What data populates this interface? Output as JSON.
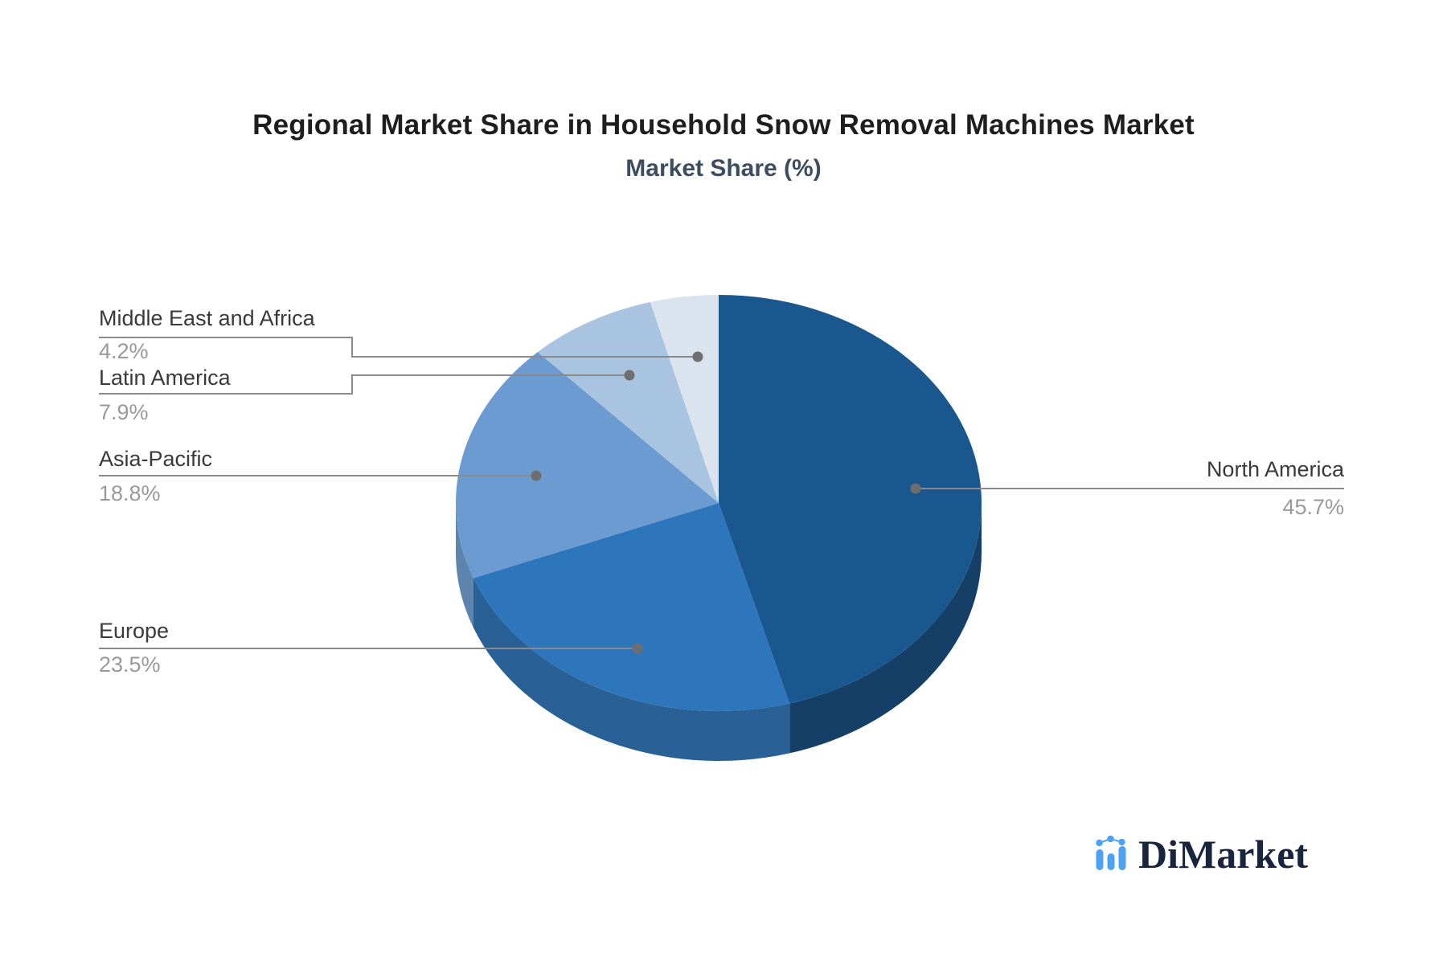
{
  "title": "Regional Market Share in Household Snow Removal Machines Market",
  "subtitle": "Market Share (%)",
  "chart_data": {
    "type": "pie",
    "style": "3d-pie",
    "title": "Regional Market Share in Household Snow Removal Machines Market",
    "value_unit": "%",
    "start_angle": "12-oclock",
    "direction": "clockwise",
    "legend_position": "callout-labels",
    "segments": [
      {
        "label": "North America",
        "value": 45.7,
        "value_label": "45.7%",
        "color": "#1B578F",
        "side_color": "#163F68"
      },
      {
        "label": "Europe",
        "value": 23.5,
        "value_label": "23.5%",
        "color": "#2E76BB",
        "side_color": "#296197"
      },
      {
        "label": "Asia-Pacific",
        "value": 18.8,
        "value_label": "18.8%",
        "color": "#6C9BD1",
        "side_color": "#5C84AC"
      },
      {
        "label": "Latin America",
        "value": 7.9,
        "value_label": "7.9%",
        "color": "#A9C4E1",
        "side_color": "#8FAECB"
      },
      {
        "label": "Middle East and Africa",
        "value": 4.2,
        "value_label": "4.2%",
        "color": "#DBE3EF",
        "side_color": "#C2D2E2"
      }
    ]
  },
  "logo": {
    "text": "DiMarket"
  },
  "colors": {
    "background": "#FFFFFF",
    "title_text": "#1E1E1E",
    "subtitle_text": "#3E4C60",
    "segment_label_text": "#3A3A3A",
    "segment_value_text": "#9A9A9A",
    "connector_line": "#8A8A8A",
    "connector_dot": "#6E6E6E",
    "logo_text": "#19253C",
    "logo_accent": "#4DA2F4"
  }
}
